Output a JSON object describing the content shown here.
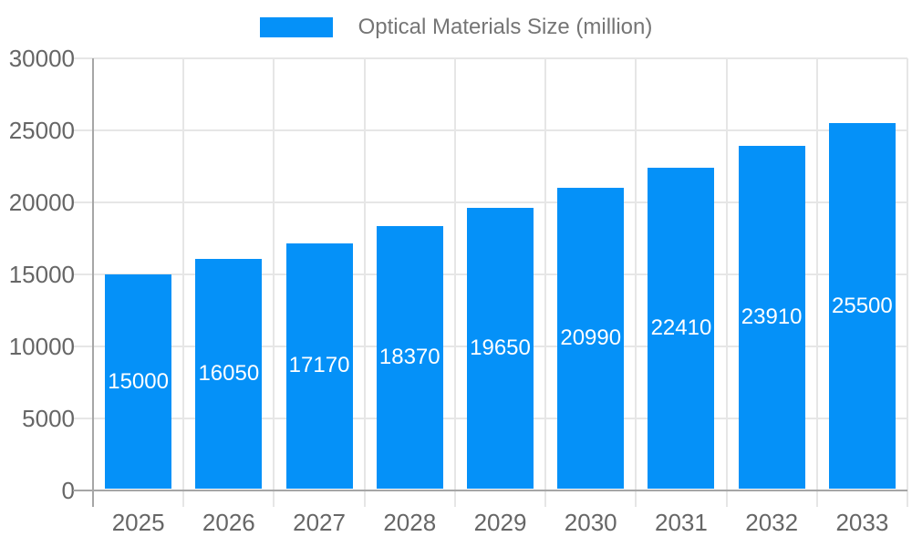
{
  "legend": {
    "items": [
      {
        "label": "Optical Materials Size (million)",
        "color": "#0591f8"
      }
    ]
  },
  "chart_data": {
    "type": "bar",
    "title": "",
    "categories": [
      "2025",
      "2026",
      "2027",
      "2028",
      "2029",
      "2030",
      "2031",
      "2032",
      "2033"
    ],
    "series": [
      {
        "name": "Optical Materials Size (million)",
        "values": [
          15000,
          16050,
          17170,
          18370,
          19650,
          20990,
          22410,
          23910,
          25500
        ],
        "color": "#0591f8"
      }
    ],
    "show_data_labels": true,
    "data_label_color": "#ffffff",
    "xlabel": "",
    "ylabel": "",
    "ylim": [
      0,
      30000
    ],
    "yticks": [
      0,
      5000,
      10000,
      15000,
      20000,
      25000,
      30000
    ],
    "grid": true,
    "legend_position": "top"
  },
  "colors": {
    "background": "#ffffff",
    "bar": "#0591f8",
    "grid": "#e6e6e6",
    "axis": "#a6a6a6",
    "tick_label": "#666666",
    "legend_text": "#757575",
    "data_label": "#ffffff"
  }
}
